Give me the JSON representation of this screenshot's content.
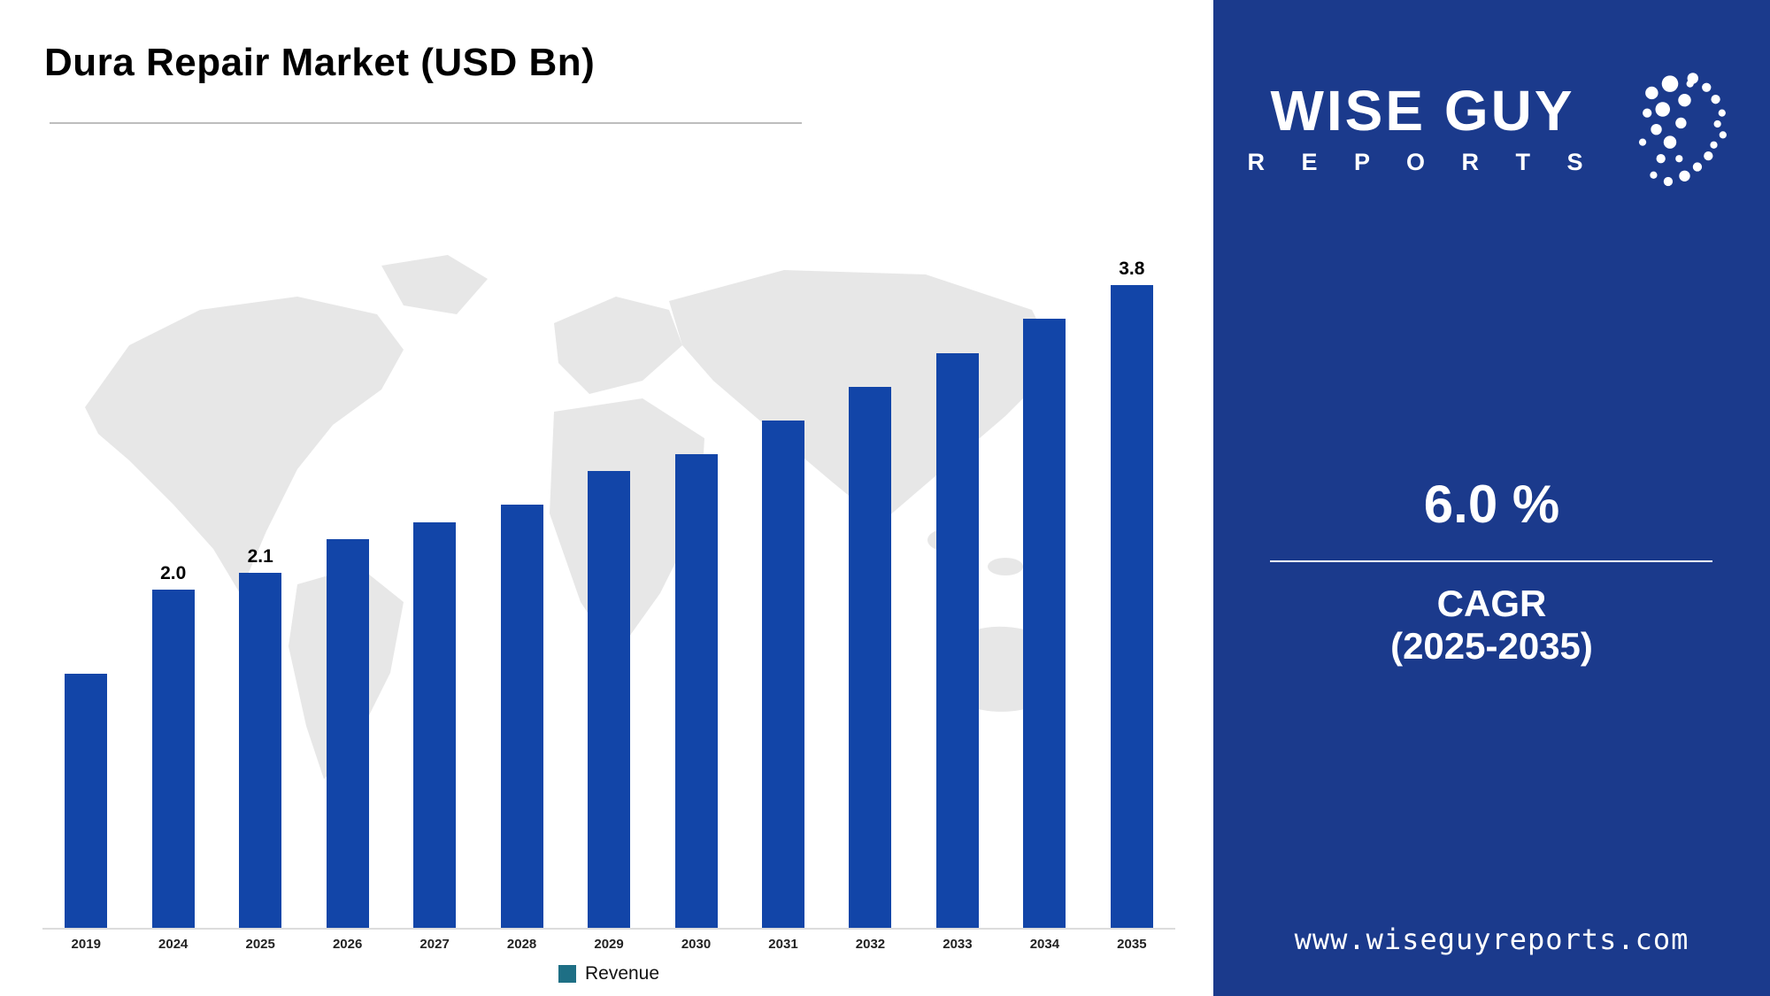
{
  "title": "Dura Repair Market (USD Bn)",
  "chart_data": {
    "type": "bar",
    "title": "Dura Repair Market (USD Bn)",
    "categories": [
      "2019",
      "2024",
      "2025",
      "2026",
      "2027",
      "2028",
      "2029",
      "2030",
      "2031",
      "2032",
      "2033",
      "2034",
      "2035"
    ],
    "values": [
      1.5,
      2.0,
      2.1,
      2.3,
      2.4,
      2.5,
      2.7,
      2.8,
      3.0,
      3.2,
      3.4,
      3.6,
      3.8
    ],
    "data_labels": [
      "",
      "2.0",
      "2.1",
      "",
      "",
      "",
      "",
      "",
      "",
      "",
      "",
      "",
      "3.8"
    ],
    "series_name": "Revenue",
    "xlabel": "",
    "ylabel": "",
    "ylim": [
      0,
      4
    ],
    "grid": false,
    "bar_color": "#1245a8",
    "legend": {
      "label": "Revenue",
      "color": "#1e6f85",
      "position": "bottom"
    }
  },
  "sidebar": {
    "background_color": "#1b3a8c",
    "logo_line1": "WISE GUY",
    "logo_line2": "R E P O R T S",
    "cagr_value": "6.0 %",
    "cagr_label_line1": "CAGR",
    "cagr_label_line2": "(2025-2035)",
    "website": "www.wiseguyreports.com"
  }
}
